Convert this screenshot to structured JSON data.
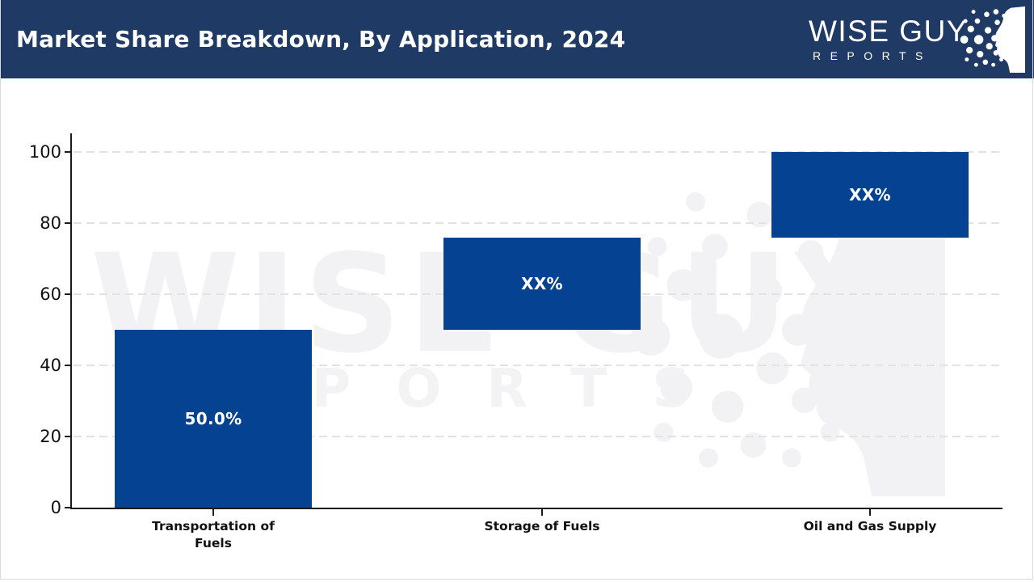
{
  "header": {
    "title": "Market Share Breakdown, By Application, 2024"
  },
  "logo": {
    "line1": "WISE GUY",
    "line2": "REPORTS"
  },
  "watermark": {
    "line1": "WISE GUY",
    "line2": "REPORTS"
  },
  "colors": {
    "header_bg": "#1f3a64",
    "bar": "#054292",
    "axis": "#1a1a1a",
    "grid": "#e2e2e2",
    "bar_label": "#ffffff",
    "tick_label": "#111111",
    "watermark": "#f2f2f4"
  },
  "chart_data": {
    "type": "bar",
    "subtype": "floating-waterfall-segments",
    "title": "Market Share Breakdown, By Application, 2024",
    "categories": [
      "Transportation of Fuels",
      "Storage of Fuels",
      "Oil and Gas Supply"
    ],
    "segments": [
      {
        "category": "Transportation of Fuels",
        "start": 0,
        "end": 50,
        "value_label": "50.0%"
      },
      {
        "category": "Storage of Fuels",
        "start": 50,
        "end": 76,
        "value_label": "XX%"
      },
      {
        "category": "Oil and Gas Supply",
        "start": 76,
        "end": 100,
        "value_label": "XX%"
      }
    ],
    "yticks": [
      0,
      20,
      40,
      60,
      80,
      100
    ],
    "ylim": [
      0,
      105
    ],
    "xlabel": "",
    "ylabel": "",
    "grid": "horizontal-dashed",
    "legend": "none",
    "bar_color": "#054292"
  }
}
